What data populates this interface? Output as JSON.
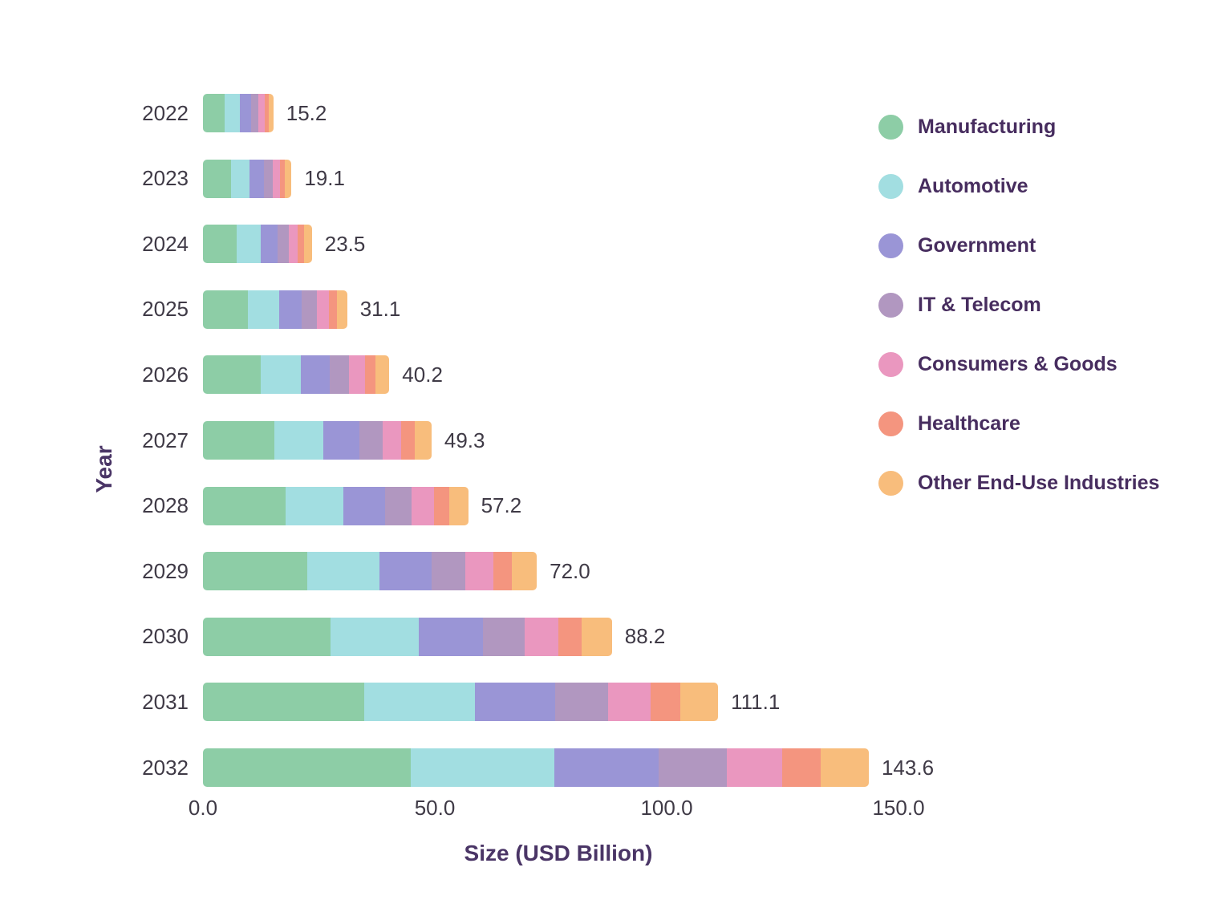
{
  "chart_data": {
    "type": "bar",
    "orientation": "horizontal",
    "stacked": true,
    "title": "",
    "xlabel": "Size (USD Billion)",
    "ylabel": "Year",
    "xlim": [
      0,
      150
    ],
    "xticks": [
      {
        "value": 0,
        "label": "0.0"
      },
      {
        "value": 50,
        "label": "50.0"
      },
      {
        "value": 100,
        "label": "100.0"
      },
      {
        "value": 150,
        "label": "150.0"
      }
    ],
    "grid": false,
    "legend_position": "top-right",
    "categories": [
      "2022",
      "2023",
      "2024",
      "2025",
      "2026",
      "2027",
      "2028",
      "2029",
      "2030",
      "2031",
      "2032"
    ],
    "totals": [
      15.2,
      19.1,
      23.5,
      31.1,
      40.2,
      49.3,
      57.2,
      72.0,
      88.2,
      111.1,
      143.6
    ],
    "total_labels": [
      "15.2",
      "19.1",
      "23.5",
      "31.1",
      "40.2",
      "49.3",
      "57.2",
      "72.0",
      "88.2",
      "111.1",
      "143.6"
    ],
    "series": [
      {
        "name": "Manufacturing",
        "color": "#8dcda6",
        "values": [
          4.7,
          6.0,
          7.3,
          9.7,
          12.5,
          15.4,
          17.9,
          22.5,
          27.5,
          34.7,
          44.8
        ]
      },
      {
        "name": "Automotive",
        "color": "#a2dee1",
        "values": [
          3.3,
          4.1,
          5.1,
          6.7,
          8.6,
          10.6,
          12.3,
          15.5,
          19.0,
          23.9,
          30.9
        ]
      },
      {
        "name": "Government",
        "color": "#9a95d6",
        "values": [
          2.4,
          3.0,
          3.7,
          4.9,
          6.3,
          7.7,
          9.0,
          11.3,
          13.8,
          17.4,
          22.5
        ]
      },
      {
        "name": "IT & Telecom",
        "color": "#b197c0",
        "values": [
          1.6,
          1.9,
          2.4,
          3.2,
          4.1,
          5.0,
          5.8,
          7.3,
          9.0,
          11.3,
          14.7
        ]
      },
      {
        "name": "Consumers & Goods",
        "color": "#ea97bf",
        "values": [
          1.3,
          1.6,
          2.0,
          2.6,
          3.4,
          4.1,
          4.8,
          6.0,
          7.4,
          9.3,
          12.1
        ]
      },
      {
        "name": "Healthcare",
        "color": "#f4957f",
        "values": [
          0.9,
          1.1,
          1.3,
          1.8,
          2.3,
          2.8,
          3.3,
          4.1,
          5.0,
          6.3,
          8.2
        ]
      },
      {
        "name": "Other End-Use Industries",
        "color": "#f8bd7c",
        "values": [
          1.0,
          1.4,
          1.7,
          2.2,
          3.0,
          3.7,
          4.1,
          5.3,
          6.5,
          8.2,
          10.4
        ]
      }
    ]
  }
}
